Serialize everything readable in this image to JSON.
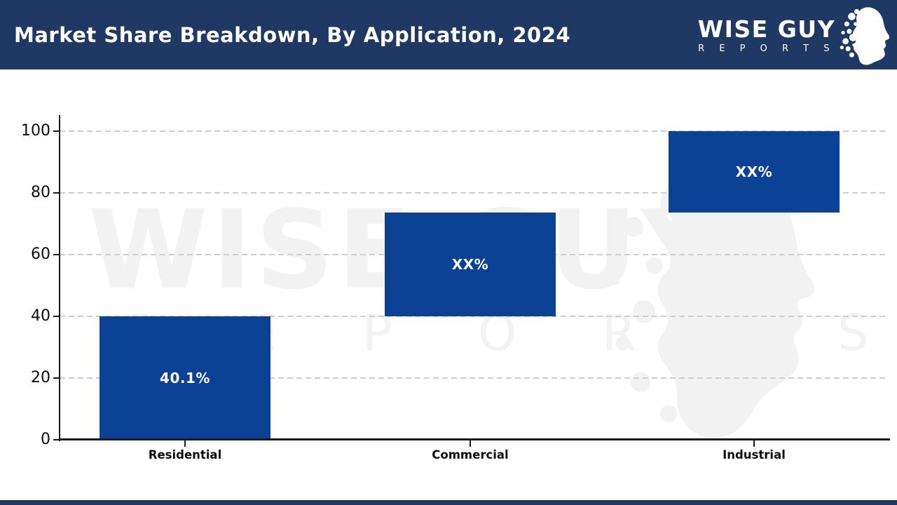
{
  "header": {
    "title": "Market Share Breakdown, By Application, 2024",
    "logo": {
      "wordmark": "WISE GUY",
      "subtext": "R E P O R T S",
      "face_icon": "dotted-face-profile"
    }
  },
  "watermark": {
    "wordmark": "WISE GUY",
    "subtext": "R E P O R T S",
    "face_icon": "dotted-face-profile"
  },
  "chart_data": {
    "type": "bar",
    "subtype": "stacked-percentage-waterfall",
    "title": "Market Share Breakdown, By Application, 2024",
    "categories": [
      "Residential",
      "Commercial",
      "Industrial"
    ],
    "bars": [
      {
        "category": "Residential",
        "start": 0,
        "end": 40.1,
        "label": "40.1%"
      },
      {
        "category": "Commercial",
        "start": 40.1,
        "end": 73.6,
        "label": "XX%"
      },
      {
        "category": "Industrial",
        "start": 73.6,
        "end": 100,
        "label": "XX%"
      }
    ],
    "y_ticks": [
      0,
      20,
      40,
      60,
      80,
      100
    ],
    "ylim": [
      0,
      105
    ],
    "xlabel": "",
    "ylabel": "",
    "grid": "horizontal-dashed",
    "legend": "none",
    "bar_color": "#0b4295",
    "bar_label_color": "#ffffff",
    "axis_color": "#1a1a1a",
    "grid_color": "#cfcfcf"
  },
  "colors": {
    "header_bg": "#1f3864",
    "footer_bar": "#1f3864",
    "page_bg": "#ffffff",
    "watermark": "#f2f2f3",
    "title_text": "#ffffff"
  }
}
